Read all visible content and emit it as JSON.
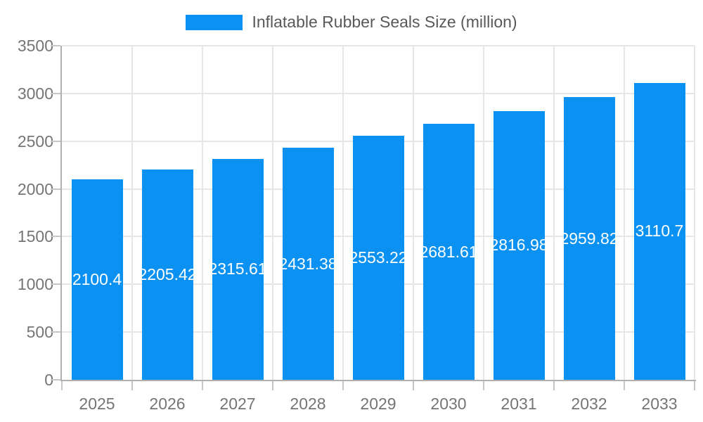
{
  "chart_data": {
    "type": "bar",
    "title": "Inflatable Rubber Seals Size (million)",
    "categories": [
      "2025",
      "2026",
      "2027",
      "2028",
      "2029",
      "2030",
      "2031",
      "2032",
      "2033"
    ],
    "values": [
      2100.4,
      2205.42,
      2315.61,
      2431.38,
      2553.22,
      2681.61,
      2816.98,
      2959.82,
      3110.7
    ],
    "value_labels": [
      "2100.4",
      "2205.42",
      "2315.61",
      "2431.38",
      "2553.22",
      "2681.61",
      "2816.98",
      "2959.82",
      "3110.7"
    ],
    "xlabel": "",
    "ylabel": "",
    "ylim": [
      0,
      3500
    ],
    "yticks": [
      0,
      500,
      1000,
      1500,
      2000,
      2500,
      3000,
      3500
    ],
    "grid": true,
    "legend_position": "top",
    "colors": {
      "bar": "#0a91f1",
      "axis": "#b0b0b0",
      "tick": "#c6c6c6",
      "grid": "#e6e6e6",
      "axis_label": "#757575",
      "legend_text": "#58595b",
      "value_label": "#ffffff"
    }
  }
}
